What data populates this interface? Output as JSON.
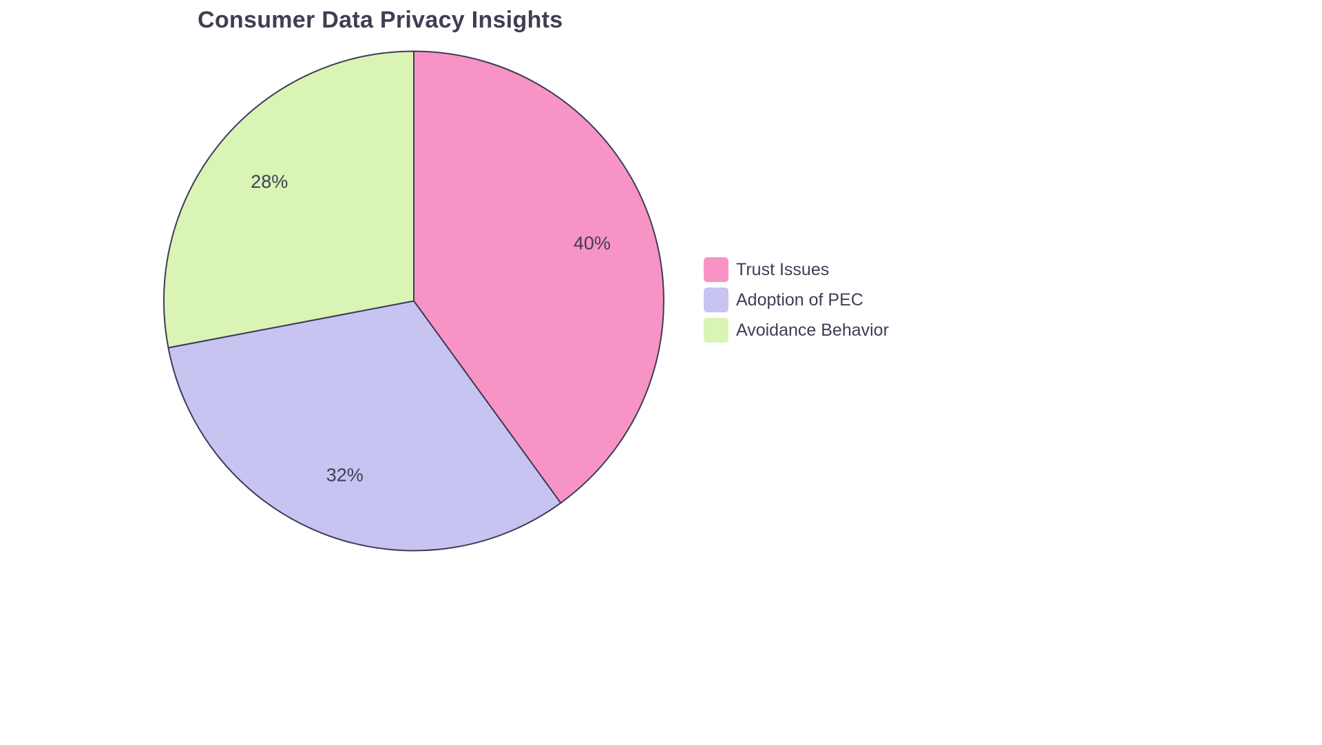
{
  "chart_data": {
    "type": "pie",
    "title": "Consumer Data Privacy Insights",
    "series": [
      {
        "label": "Trust Issues",
        "value": 40,
        "percent_label": "40%",
        "color": "#F893C6"
      },
      {
        "label": "Adoption of PEC",
        "value": 32,
        "percent_label": "32%",
        "color": "#C7C4F2"
      },
      {
        "label": "Avoidance Behavior",
        "value": 28,
        "percent_label": "28%",
        "color": "#D9F4B4"
      }
    ],
    "start_angle_deg": 0,
    "direction": "clockwise",
    "stroke_color": "#3B3B55",
    "label_color": "#3E3E54",
    "title_color": "#3E3E54",
    "legend_position": "right",
    "background": "#FFFFFF"
  }
}
